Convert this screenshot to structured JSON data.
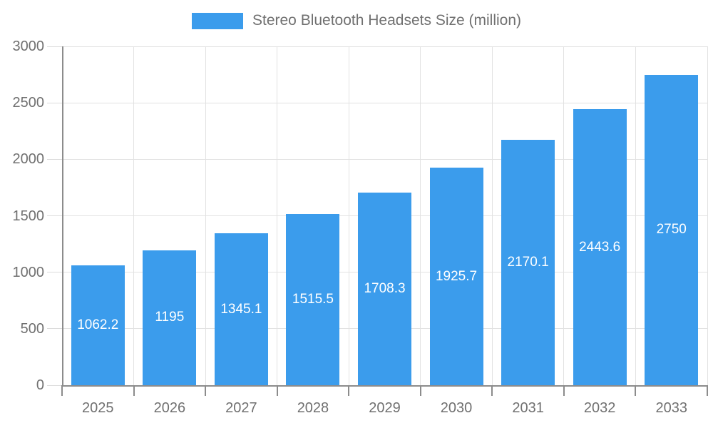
{
  "legend": {
    "label": "Stereo Bluetooth Headsets Size (million)"
  },
  "chart_data": {
    "type": "bar",
    "title": "Stereo Bluetooth Headsets Size (million)",
    "categories": [
      "2025",
      "2026",
      "2027",
      "2028",
      "2029",
      "2030",
      "2031",
      "2032",
      "2033"
    ],
    "series": [
      {
        "name": "Stereo Bluetooth Headsets Size (million)",
        "values": [
          1062.2,
          1195,
          1345.1,
          1515.5,
          1708.3,
          1925.7,
          2170.1,
          2443.6,
          2750
        ]
      }
    ],
    "value_labels": [
      "1062.2",
      "1195",
      "1345.1",
      "1515.5",
      "1708.3",
      "1925.7",
      "2170.1",
      "2443.6",
      "2750"
    ],
    "xlabel": "",
    "ylabel": "",
    "ylim": [
      0,
      3000
    ],
    "yticks": [
      0,
      500,
      1000,
      1500,
      2000,
      2500,
      3000
    ],
    "grid": true,
    "legend_position": "top-center",
    "value_label_position": "inside-middle",
    "colors": {
      "bar": "#3b9cec",
      "grid": "#e2e2e2",
      "axis": "#8c8c8c",
      "tick_label": "#707070",
      "value_label": "#ffffff",
      "background": "#ffffff"
    }
  }
}
